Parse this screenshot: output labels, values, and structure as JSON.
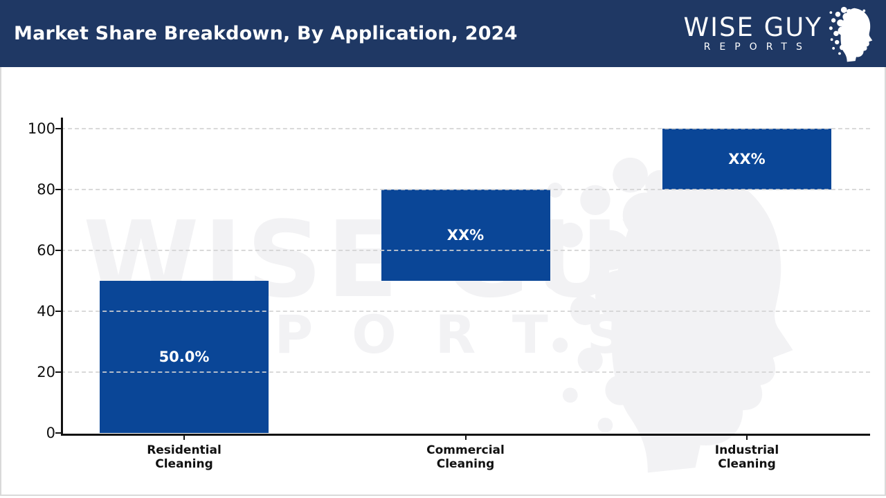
{
  "header": {
    "title": "Market Share Breakdown, By Application, 2024",
    "background": "#1F3864"
  },
  "logo": {
    "primary": "WISE GUY",
    "secondary": "REPORTS"
  },
  "watermark": {
    "primary": "WISE GUY",
    "secondary": "REPORTS"
  },
  "colors": {
    "header_bg": "#1F3864",
    "bar": "#0A4697",
    "bar_label": "#FFFFFF",
    "axis": "#111111",
    "grid": "#D2D2D2",
    "frame_border": "#D9D9D9",
    "watermark": "#F2F2F4"
  },
  "chart_data": {
    "type": "bar",
    "variant": "waterfall-segmented",
    "title": "Market Share Breakdown, By Application, 2024",
    "categories": [
      "Residential Cleaning",
      "Commercial Cleaning",
      "Industrial Cleaning"
    ],
    "category_lines": [
      [
        "Residential",
        "Cleaning"
      ],
      [
        "Commercial",
        "Cleaning"
      ],
      [
        "Industrial",
        "Cleaning"
      ]
    ],
    "segments": [
      {
        "category": "Residential Cleaning",
        "from": 0,
        "to": 50,
        "label": "50.0%"
      },
      {
        "category": "Commercial Cleaning",
        "from": 50,
        "to": 80,
        "label": "XX%"
      },
      {
        "category": "Industrial Cleaning",
        "from": 80,
        "to": 100,
        "label": "XX%"
      }
    ],
    "yticks": [
      0,
      20,
      40,
      60,
      80,
      100
    ],
    "ylim": [
      0,
      104
    ],
    "xlabel": "",
    "ylabel": "",
    "grid": "horizontal-dashed",
    "legend": "none",
    "bar_color": "#0A4697",
    "bar_label_color": "#FFFFFF"
  }
}
